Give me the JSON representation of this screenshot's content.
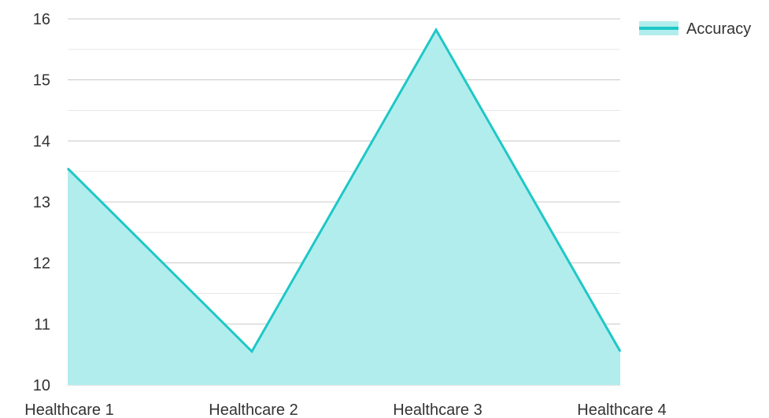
{
  "chart_data": {
    "type": "area",
    "categories": [
      "Healthcare 1",
      "Healthcare 2",
      "Healthcare 3",
      "Healthcare 4"
    ],
    "series": [
      {
        "name": "Accuracy",
        "values": [
          13.55,
          10.55,
          15.82,
          10.55
        ]
      }
    ],
    "ylim": [
      10,
      16
    ],
    "y_ticks": [
      "10",
      "11",
      "12",
      "13",
      "14",
      "15",
      "16"
    ],
    "grid": true,
    "legend_position": "top-right",
    "colors": {
      "line": "#1fc7c7",
      "fill": "#b2eded"
    }
  }
}
